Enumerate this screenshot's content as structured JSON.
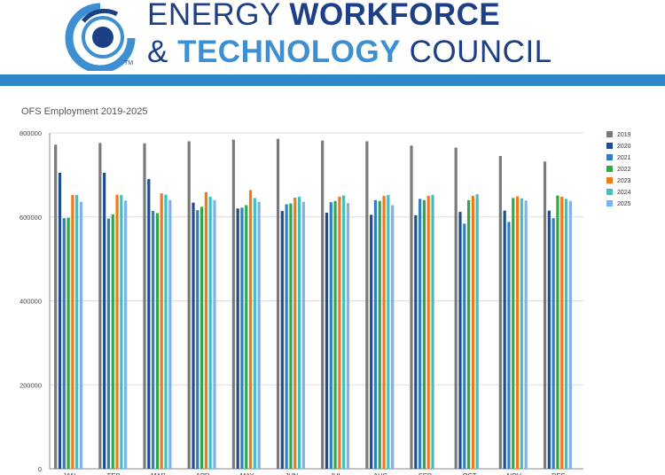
{
  "header": {
    "title_line1_a": "ENERGY ",
    "title_line1_b": "WORKFORCE",
    "title_line2_a": "& ",
    "title_line2_b": "TECHNOLOGY ",
    "title_line2_c": "COUNCIL",
    "trademark": "TM",
    "brand_color": "#1d3f86",
    "accent_color": "#2f86c8"
  },
  "chart_data": {
    "type": "bar",
    "title": "OFS Employment 2019-2025",
    "xlabel": "",
    "ylabel": "",
    "ylim": [
      0,
      800000
    ],
    "yticks": [
      "0",
      "200000",
      "400000",
      "600000",
      "800000"
    ],
    "grid": true,
    "legend_position": "right",
    "categories": [
      "JAN",
      "FEB",
      "MAR",
      "APR",
      "MAY",
      "JUN",
      "JUL",
      "AUG",
      "SEP",
      "OCT",
      "NOV",
      "DEC"
    ],
    "series": [
      {
        "name": "2019",
        "color": "#7a7a7a",
        "values": [
          772000,
          776000,
          775000,
          780000,
          784000,
          786000,
          782000,
          780000,
          770000,
          765000,
          745000,
          732000
        ]
      },
      {
        "name": "2020",
        "color": "#1f4e8c",
        "values": [
          705000,
          705000,
          690000,
          634000,
          620000,
          614000,
          610000,
          605000,
          604000,
          612000,
          615000,
          615000
        ]
      },
      {
        "name": "2021",
        "color": "#2f7fc1",
        "values": [
          597000,
          596000,
          614000,
          616000,
          622000,
          630000,
          635000,
          640000,
          643000,
          584000,
          588000,
          597000
        ]
      },
      {
        "name": "2022",
        "color": "#2ea84a",
        "values": [
          598000,
          606000,
          609000,
          624000,
          628000,
          632000,
          638000,
          638000,
          640000,
          640000,
          645000,
          651000
        ]
      },
      {
        "name": "2023",
        "color": "#f07a1a",
        "values": [
          652000,
          653000,
          656000,
          659000,
          664000,
          646000,
          648000,
          650000,
          650000,
          650000,
          649000,
          648000
        ]
      },
      {
        "name": "2024",
        "color": "#3fc0c0",
        "values": [
          652000,
          652000,
          653000,
          648000,
          645000,
          648000,
          651000,
          652000,
          652000,
          654000,
          644000,
          643000
        ]
      },
      {
        "name": "2025",
        "color": "#7fb2ea",
        "values": [
          636000,
          639000,
          640000,
          640000,
          636000,
          636000,
          633000,
          628000,
          0,
          0,
          639000,
          638000
        ]
      }
    ]
  }
}
